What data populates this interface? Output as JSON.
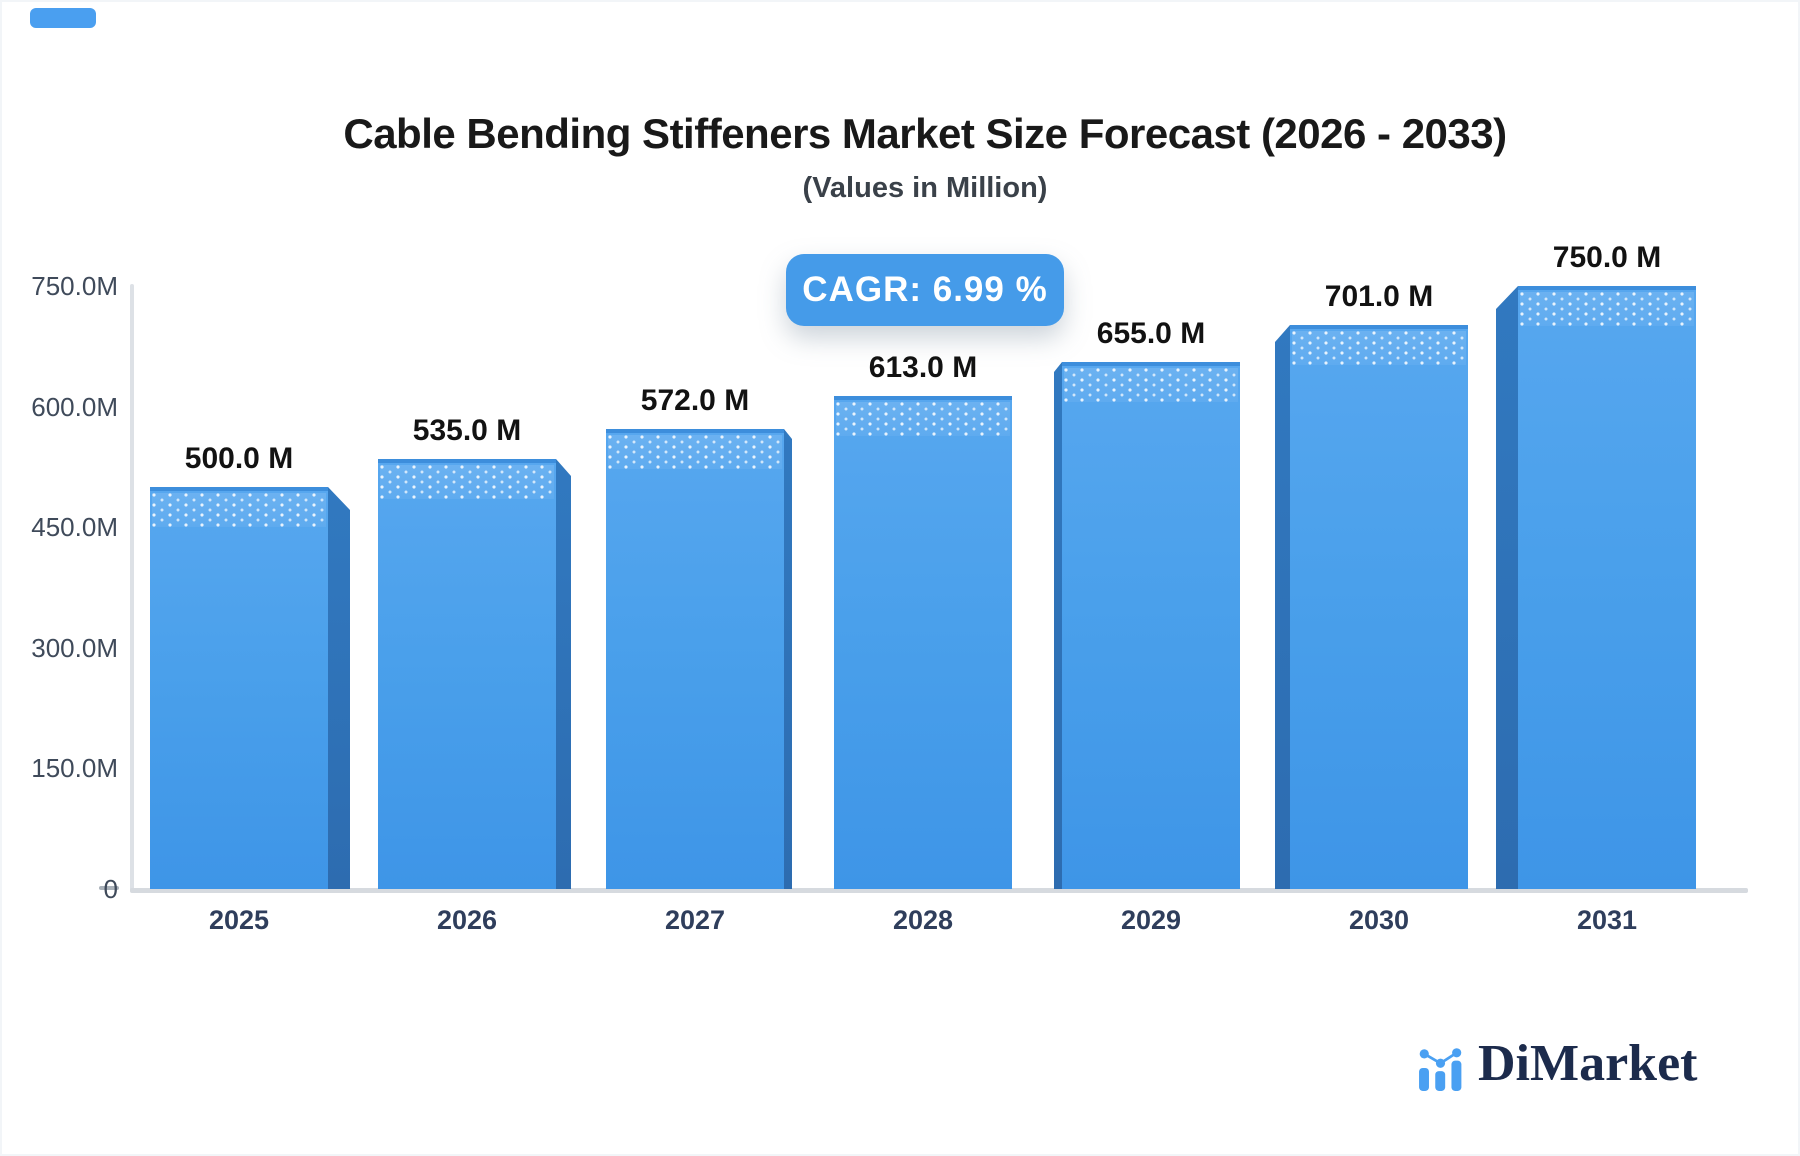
{
  "header": {
    "title": "Cable Bending Stiffeners Market Size Forecast (2026 - 2033)",
    "subtitle": "(Values in Million)"
  },
  "badge": {
    "label": "CAGR: 6.99 %",
    "color": "#459be9"
  },
  "chart_data": {
    "type": "bar",
    "title": "Cable Bending Stiffeners Market Size Forecast (2026 - 2033)",
    "subtitle": "(Values in Million)",
    "categories": [
      "2025",
      "2026",
      "2027",
      "2028",
      "2029",
      "2030",
      "2031"
    ],
    "values": [
      500,
      535,
      572,
      613,
      655,
      701,
      750
    ],
    "bar_labels": [
      "500.0 M",
      "535.0 M",
      "572.0 M",
      "613.0 M",
      "655.0 M",
      "701.0 M",
      "750.0 M"
    ],
    "y_ticks": [
      {
        "value": 750,
        "label": "750.0M"
      },
      {
        "value": 600,
        "label": "600.0M"
      },
      {
        "value": 450,
        "label": "450.0M"
      },
      {
        "value": 300,
        "label": "300.0M"
      },
      {
        "value": 150,
        "label": "150.0M"
      },
      {
        "value": 0,
        "label": "0"
      }
    ],
    "ylim": [
      0,
      750
    ],
    "grid": "off",
    "legend": "none",
    "annotation": "CAGR: 6.99 %",
    "bar_color": "#479ee9",
    "bar_side_color": "#2e72b6"
  },
  "logo": {
    "text": "DiMarket",
    "icon": "bar-line-chart-icon",
    "text_color": "#1c2b4c",
    "icon_color": "#4aa0f2"
  }
}
